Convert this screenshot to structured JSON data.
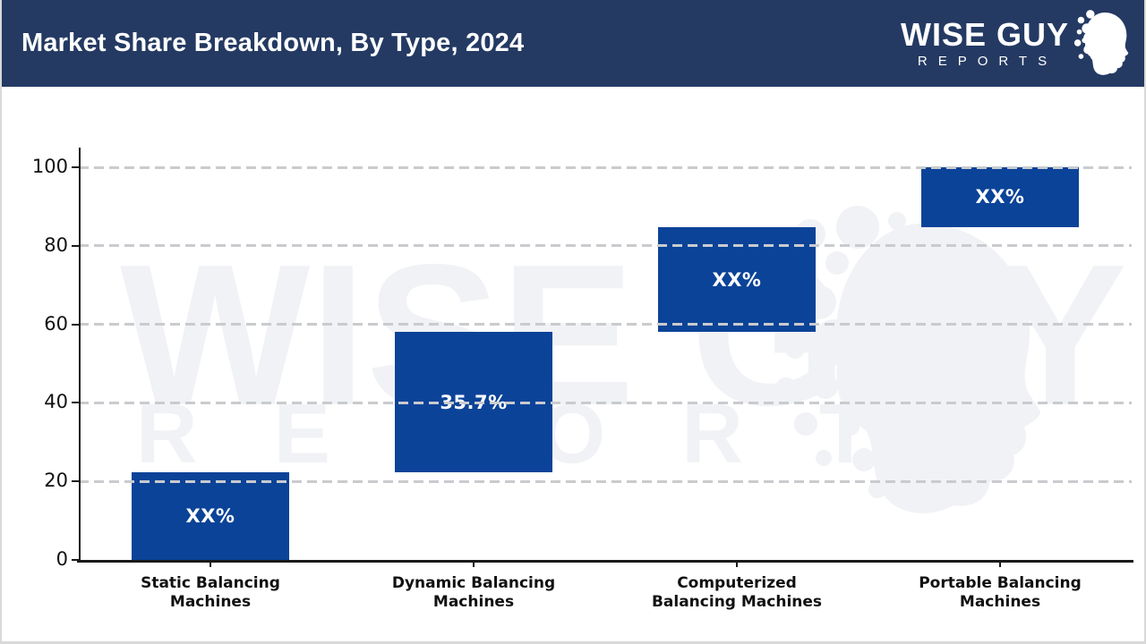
{
  "header": {
    "title": "Market Share Breakdown, By Type, 2024"
  },
  "logo": {
    "brand_top": "WISE GUY",
    "brand_bottom": "REPORTS"
  },
  "watermark": {
    "text_top": "WISE GUY",
    "text_bottom": "REPORTS"
  },
  "chart_data": {
    "type": "bar",
    "subtype": "waterfall",
    "title": "Market Share Breakdown, By Type, 2024",
    "unit": "percent market share",
    "categories": [
      {
        "name": "Static Balancing Machines",
        "label_lines": [
          "Static Balancing",
          "Machines"
        ]
      },
      {
        "name": "Dynamic Balancing Machines",
        "label_lines": [
          "Dynamic Balancing",
          "Machines"
        ]
      },
      {
        "name": "Computerized Balancing Machines",
        "label_lines": [
          "Computerized",
          "Balancing Machines"
        ]
      },
      {
        "name": "Portable Balancing Machines",
        "label_lines": [
          "Portable Balancing",
          "Machines"
        ]
      }
    ],
    "segments": [
      {
        "category": "Static Balancing Machines",
        "start": 0,
        "end": 22.3,
        "value": 22.3,
        "label": "XX%"
      },
      {
        "category": "Dynamic Balancing Machines",
        "start": 22.3,
        "end": 58.0,
        "value": 35.7,
        "label": "35.7%"
      },
      {
        "category": "Computerized Balancing Machines",
        "start": 58.0,
        "end": 84.8,
        "value": 26.8,
        "label": "XX%"
      },
      {
        "category": "Portable Balancing Machines",
        "start": 84.8,
        "end": 100.0,
        "value": 15.2,
        "label": "XX%"
      }
    ],
    "ylim": [
      0,
      105
    ],
    "yticks": [
      0,
      20,
      40,
      60,
      80,
      100
    ],
    "grid": {
      "visible": true,
      "style": "dashed",
      "axis": "y",
      "drawn_over_bars": true
    },
    "legend": null,
    "colors": {
      "bar": "#0b4398",
      "bar_label": "#ffffff",
      "grid": "#c9cbce",
      "axis": "#1a1a1a",
      "tick_label": "#111111"
    }
  },
  "colors": {
    "header_bg": "#243a63",
    "page_bg": "#ffffff",
    "watermark": "#f1f2f5",
    "border": "#d9d9d9"
  }
}
